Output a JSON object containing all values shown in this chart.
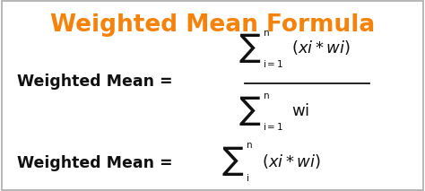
{
  "title": "Weighted Mean Formula",
  "title_color": "#f5820a",
  "title_fontsize": 19,
  "title_fontweight": "bold",
  "bg_color": "#ffffff",
  "border_color": "#aaaaaa",
  "text_color": "#111111",
  "label_fontsize": 12.5,
  "formula_fontsize": 13
}
